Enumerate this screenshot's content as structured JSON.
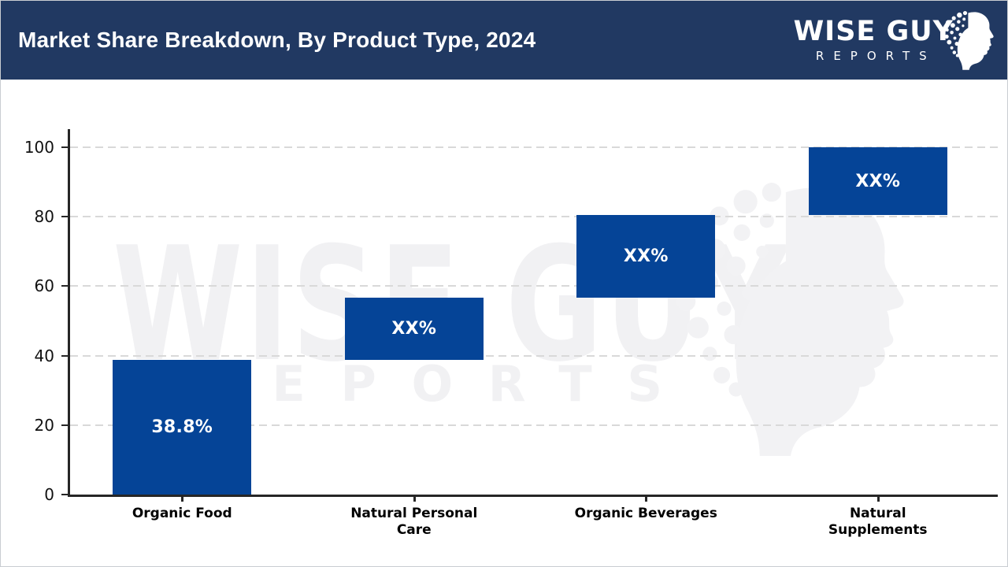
{
  "header": {
    "title": "Market Share Breakdown, By Product Type, 2024",
    "bg_color": "#213962",
    "logo": {
      "name": "WISE GUY",
      "tagline": "REPORTS"
    }
  },
  "watermark": {
    "line1": "WISE GUY",
    "line2": "REPORTS"
  },
  "chart_data": {
    "type": "bar",
    "subtype": "waterfall",
    "title": "Market Share Breakdown, By Product Type, 2024",
    "categories": [
      "Organic Food",
      "Natural Personal Care",
      "Organic Beverages",
      "Natural Supplements"
    ],
    "x_tick_label_lines": [
      [
        "Organic Food"
      ],
      [
        "Natural Personal",
        "Care"
      ],
      [
        "Organic Beverages"
      ],
      [
        "Natural",
        "Supplements"
      ]
    ],
    "segments": [
      {
        "category": "Organic Food",
        "start": 0,
        "end": 38.8,
        "label": "38.8%"
      },
      {
        "category": "Natural Personal Care",
        "start": 38.8,
        "end": 56.7,
        "label": "XX%"
      },
      {
        "category": "Organic Beverages",
        "start": 56.7,
        "end": 80.4,
        "label": "XX%"
      },
      {
        "category": "Natural Supplements",
        "start": 80.4,
        "end": 100,
        "label": "XX%"
      }
    ],
    "yticks": [
      0,
      20,
      40,
      60,
      80,
      100
    ],
    "ylim": [
      0,
      100
    ],
    "grid": "horizontal-dashed",
    "legend": "none",
    "bar_color": "#054497",
    "bar_label_color": "#ffffff",
    "axis_color": "#262626"
  }
}
